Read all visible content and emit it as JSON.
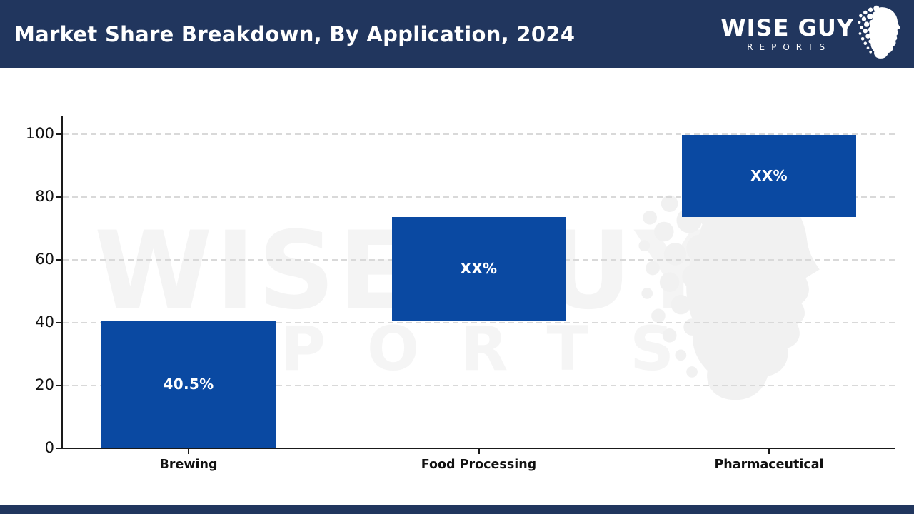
{
  "header": {
    "title": "Market Share Breakdown, By Application, 2024",
    "logo": {
      "line1": "WISE GUY",
      "line2": "REPORTS"
    }
  },
  "watermark": {
    "line1": "WISE GUY",
    "line2": "REPORTS"
  },
  "colors": {
    "header_bg": "#21365e",
    "bar": "#0a49a2",
    "grid": "#d9d9d9",
    "axis": "#1a1a1a",
    "bar_label": "#ffffff",
    "tick_label": "#111111",
    "watermark": "#f4f4f4"
  },
  "chart_data": {
    "type": "bar",
    "subtype": "floating-waterfall",
    "title": "Market Share Breakdown, By Application, 2024",
    "categories": [
      "Brewing",
      "Food Processing",
      "Pharmaceutical"
    ],
    "bars": [
      {
        "category": "Brewing",
        "start": 0,
        "end": 40.5,
        "label": "40.5%"
      },
      {
        "category": "Food Processing",
        "start": 40.5,
        "end": 73.5,
        "label": "XX%"
      },
      {
        "category": "Pharmaceutical",
        "start": 73.5,
        "end": 99.5,
        "label": "XX%"
      }
    ],
    "yticks": [
      0,
      20,
      40,
      60,
      80,
      100
    ],
    "ylim": [
      0,
      105.5
    ],
    "grid": "dashed-horizontal",
    "legend": "none",
    "bar_color": "#0a49a2",
    "label_color": "#ffffff"
  }
}
